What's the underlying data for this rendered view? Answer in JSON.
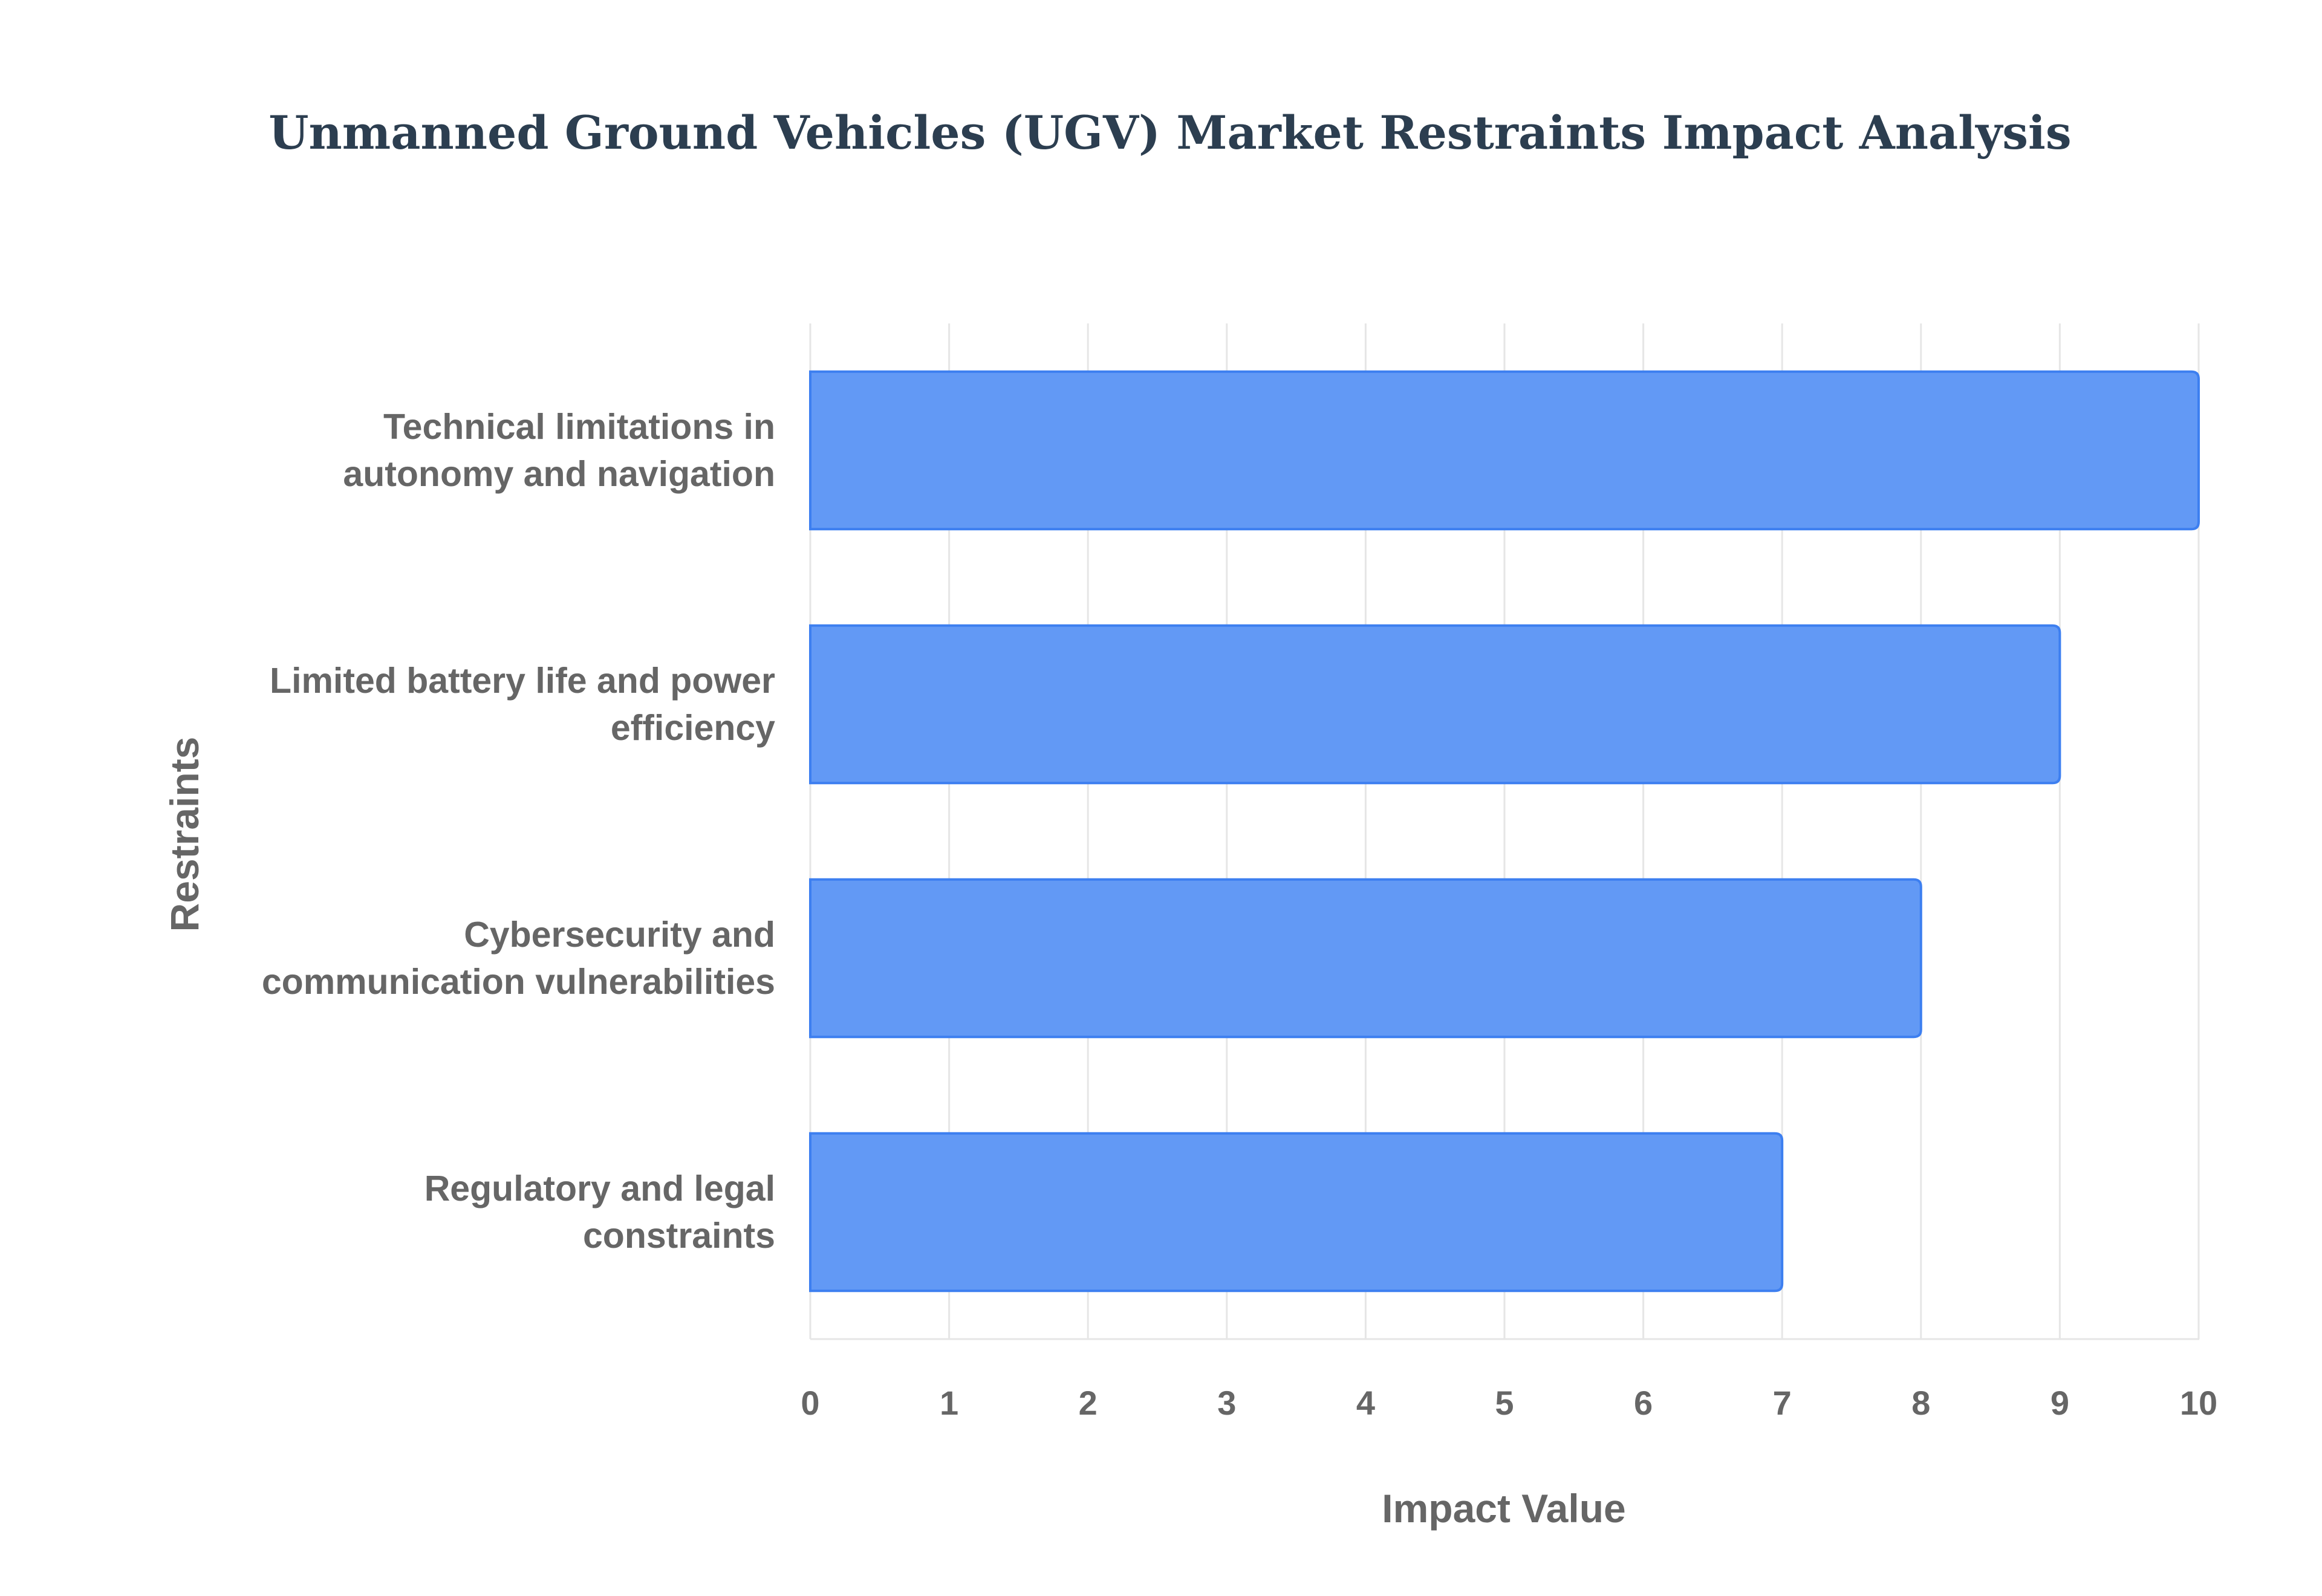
{
  "chart_data": {
    "type": "bar",
    "orientation": "horizontal",
    "title": "Unmanned Ground Vehicles (UGV) Market Restraints Impact Analysis",
    "xlabel": "Impact Value",
    "ylabel": "Restraints",
    "categories": [
      [
        "Technical limitations in",
        "autonomy and navigation"
      ],
      [
        "Limited battery life and power",
        "efficiency"
      ],
      [
        "Cybersecurity and",
        "communication vulnerabilities"
      ],
      [
        "Regulatory and legal",
        "constraints"
      ]
    ],
    "values": [
      10,
      9,
      8,
      7
    ],
    "xlim": [
      0,
      10
    ],
    "xticks": [
      "0",
      "1",
      "2",
      "3",
      "4",
      "5",
      "6",
      "7",
      "8",
      "9",
      "10"
    ],
    "grid": true,
    "colors": {
      "bar_fill": "#6299f5",
      "bar_stroke": "#3d7ff0",
      "grid": "#e6e6e6",
      "axis_text": "#666666",
      "title": "#2c3e50"
    }
  }
}
